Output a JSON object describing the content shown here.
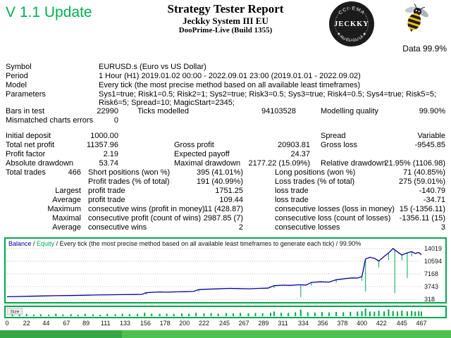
{
  "version_label": "V 1.1 Update",
  "header": {
    "title": "Strategy Tester Report",
    "subtitle": "Jeckky System III EU",
    "build": "DooPrime-Live (Build 1355)",
    "badge": {
      "arc_top": "· CCI-EMA ·",
      "center": "JECKKY",
      "arc_bottom": "★ AU EU GU UI ★"
    },
    "data_quality": "Data 99.9%"
  },
  "colors": {
    "accent_green": "#00B04F",
    "border_green": "#00A94C",
    "band_green_left": "#35A845",
    "band_green_right": "#4CC24F",
    "balance_blue": "#0000A0",
    "equity_green": "#00A651",
    "grid_gray": "#BFBFBF"
  },
  "report": {
    "rows": [
      {
        "cells": [
          [
            "c1",
            "Symbol"
          ],
          [
            "wide",
            "EURUSD.s (Euro vs US Dollar)"
          ]
        ]
      },
      {
        "cells": [
          [
            "c1",
            "Period"
          ],
          [
            "wide",
            "1 Hour (H1) 2019.01.02 00:00 - 2022.09.01 23:00 (2019.01.01 - 2022.09.02)"
          ]
        ]
      },
      {
        "cells": [
          [
            "c1",
            "Model"
          ],
          [
            "wide",
            "Every tick (the most precise method based on all available least timeframes)"
          ]
        ]
      },
      {
        "cls": "h24",
        "cells": [
          [
            "c1",
            "Parameters"
          ],
          [
            "wide",
            "Sys1=true; Risk1=0.5; Risk2=1; Sys2=true; Risk3=0.5; Sys3=true; Risk4=0.5; Sys4=true; Risk5=5; Risk6=5; Spread=10; MagicStart=2345;"
          ]
        ]
      },
      {
        "cells": [
          [
            "c1",
            "Bars in test"
          ],
          [
            "v1",
            "22990"
          ],
          [
            "c2m",
            "Ticks modelled"
          ],
          [
            "v2m",
            "94103528"
          ],
          [
            "c3",
            "Modelling quality"
          ],
          [
            "v3",
            "99.90%"
          ]
        ]
      },
      {
        "cls": "h22",
        "cells": [
          [
            "c1",
            "Mismatched charts errors"
          ],
          [
            "v1",
            "0"
          ]
        ]
      },
      {
        "cells": [
          [
            "c1",
            "Initial deposit"
          ],
          [
            "v1",
            "1000.00"
          ],
          [
            "c3",
            "Spread"
          ],
          [
            "v3",
            "Variable"
          ]
        ]
      },
      {
        "cells": [
          [
            "c1",
            "Total net profit"
          ],
          [
            "v1",
            "11357.96"
          ],
          [
            "c2",
            "Gross profit"
          ],
          [
            "v2",
            "20903.81"
          ],
          [
            "c3",
            "Gross loss"
          ],
          [
            "v3",
            "-9545.85"
          ]
        ]
      },
      {
        "cells": [
          [
            "c1",
            "Profit factor"
          ],
          [
            "v1",
            "2.19"
          ],
          [
            "c2",
            "Expected payoff"
          ],
          [
            "v2",
            "24.37"
          ]
        ]
      },
      {
        "cells": [
          [
            "c1",
            "Absolute drawdown"
          ],
          [
            "v1",
            "53.74"
          ],
          [
            "c2",
            "Maximal drawdown"
          ],
          [
            "v2",
            "2177.22 (15.09%)"
          ],
          [
            "c3",
            "Relative drawdown"
          ],
          [
            "v3",
            "21.95% (1106.98)"
          ]
        ]
      },
      {
        "cells": [
          [
            "c1",
            "Total trades"
          ],
          [
            "v1t",
            "466"
          ],
          [
            "c2t",
            "Short positions (won %)"
          ],
          [
            "v2t",
            "395 (41.01%)"
          ],
          [
            "c3t",
            "Long positions (won %)"
          ],
          [
            "v3",
            "71 (40.85%)"
          ]
        ]
      },
      {
        "cells": [
          [
            "c2t",
            "Profit trades (% of total)"
          ],
          [
            "v2t",
            "191 (40.99%)"
          ],
          [
            "c3t",
            "Loss trades (% of total)"
          ],
          [
            "v3",
            "275 (59.01%)"
          ]
        ]
      },
      {
        "cells": [
          [
            "v1t",
            "Largest"
          ],
          [
            "c2t",
            "profit trade"
          ],
          [
            "v2t",
            "1751.25"
          ],
          [
            "c3t",
            "loss trade"
          ],
          [
            "v3",
            "-140.79"
          ]
        ]
      },
      {
        "cells": [
          [
            "v1t",
            "Average"
          ],
          [
            "c2t",
            "profit trade"
          ],
          [
            "v2t",
            "109.44"
          ],
          [
            "c3t",
            "loss trade"
          ],
          [
            "v3",
            "-34.71"
          ]
        ]
      },
      {
        "cells": [
          [
            "v1t",
            "Maximum"
          ],
          [
            "c2t",
            "consecutive wins (profit in money)"
          ],
          [
            "v2t",
            "11 (428.87)"
          ],
          [
            "c3t",
            "consecutive losses (loss in money)"
          ],
          [
            "v3",
            "15 (-1356.11)"
          ]
        ]
      },
      {
        "cells": [
          [
            "v1t",
            "Maximal"
          ],
          [
            "c2t",
            "consecutive profit (count of wins)"
          ],
          [
            "v2t",
            "2987.85 (7)"
          ],
          [
            "c3t",
            "consecutive loss (count of losses)"
          ],
          [
            "v3",
            "-1356.11 (15)"
          ]
        ]
      },
      {
        "cells": [
          [
            "v1t",
            "Average"
          ],
          [
            "c2t",
            "consecutive wins"
          ],
          [
            "v2t",
            "2"
          ],
          [
            "c3t",
            "consecutive losses"
          ],
          [
            "v3",
            "3"
          ]
        ]
      }
    ]
  },
  "chart_data": {
    "type": "line",
    "legend": {
      "balance": "Balance",
      "equity": "Equity",
      "sep": " / ",
      "desc": "Every tick (the most precise method based on all available least timeframes to generate each tick)",
      "quality": "99.90%"
    },
    "size_label": "Size",
    "xmin": 0,
    "xmax": 467,
    "ymin": 318,
    "ymax": 14019,
    "ylabels": [
      14019,
      10594,
      7168,
      3743,
      318
    ],
    "xlabels": [
      0,
      22,
      44,
      67,
      89,
      111,
      133,
      156,
      178,
      200,
      222,
      245,
      267,
      289,
      311,
      334,
      356,
      378,
      400,
      422,
      445,
      467
    ],
    "balance_series": [
      [
        0,
        1000
      ],
      [
        12,
        1060
      ],
      [
        25,
        1130
      ],
      [
        40,
        1210
      ],
      [
        55,
        1280
      ],
      [
        70,
        1330
      ],
      [
        85,
        1400
      ],
      [
        100,
        1470
      ],
      [
        115,
        1530
      ],
      [
        130,
        1570
      ],
      [
        145,
        1620
      ],
      [
        152,
        1650
      ],
      [
        157,
        2080
      ],
      [
        165,
        2230
      ],
      [
        172,
        2300
      ],
      [
        180,
        2240
      ],
      [
        190,
        2310
      ],
      [
        200,
        2370
      ],
      [
        210,
        2430
      ],
      [
        216,
        2920
      ],
      [
        226,
        3040
      ],
      [
        238,
        3130
      ],
      [
        250,
        3270
      ],
      [
        261,
        3210
      ],
      [
        273,
        3160
      ],
      [
        284,
        3270
      ],
      [
        294,
        3330
      ],
      [
        301,
        3990
      ],
      [
        311,
        4130
      ],
      [
        319,
        4070
      ],
      [
        329,
        4230
      ],
      [
        337,
        4170
      ],
      [
        343,
        4870
      ],
      [
        353,
        5030
      ],
      [
        363,
        4960
      ],
      [
        371,
        5590
      ],
      [
        381,
        5890
      ],
      [
        389,
        6090
      ],
      [
        395,
        6050
      ],
      [
        400,
        6440
      ],
      [
        404,
        11210
      ],
      [
        409,
        11660
      ],
      [
        414,
        11420
      ],
      [
        419,
        10660
      ],
      [
        425,
        11910
      ],
      [
        430,
        12820
      ],
      [
        435,
        14019
      ],
      [
        440,
        13120
      ],
      [
        445,
        12260
      ],
      [
        451,
        12860
      ],
      [
        456,
        13210
      ],
      [
        460,
        12710
      ],
      [
        464,
        12960
      ],
      [
        467,
        12358
      ]
    ],
    "equity_spikes": [
      [
        157,
        1600
      ],
      [
        216,
        2350
      ],
      [
        301,
        3300
      ],
      [
        331,
        900
      ],
      [
        343,
        4000
      ],
      [
        371,
        4800
      ],
      [
        400,
        5300
      ],
      [
        404,
        2400
      ],
      [
        419,
        8900
      ],
      [
        430,
        10900
      ],
      [
        437,
        2000
      ],
      [
        445,
        10800
      ],
      [
        451,
        6000
      ],
      [
        456,
        11900
      ]
    ],
    "size_bars": [
      [
        6,
        0.25
      ],
      [
        14,
        0.2
      ],
      [
        22,
        0.28
      ],
      [
        30,
        0.2
      ],
      [
        38,
        0.25
      ],
      [
        47,
        0.2
      ],
      [
        55,
        0.3
      ],
      [
        63,
        0.22
      ],
      [
        72,
        0.26
      ],
      [
        80,
        0.2
      ],
      [
        88,
        0.3
      ],
      [
        97,
        0.24
      ],
      [
        105,
        0.2
      ],
      [
        113,
        0.3
      ],
      [
        122,
        0.25
      ],
      [
        130,
        0.3
      ],
      [
        138,
        0.26
      ],
      [
        147,
        0.3
      ],
      [
        155,
        0.45
      ],
      [
        163,
        0.32
      ],
      [
        172,
        0.3
      ],
      [
        180,
        0.34
      ],
      [
        188,
        0.3
      ],
      [
        197,
        0.36
      ],
      [
        205,
        0.32
      ],
      [
        213,
        0.45
      ],
      [
        222,
        0.36
      ],
      [
        230,
        0.4
      ],
      [
        238,
        0.34
      ],
      [
        247,
        0.4
      ],
      [
        255,
        0.36
      ],
      [
        263,
        0.42
      ],
      [
        272,
        0.36
      ],
      [
        280,
        0.42
      ],
      [
        288,
        0.38
      ],
      [
        297,
        0.44
      ],
      [
        301,
        0.6
      ],
      [
        309,
        0.45
      ],
      [
        317,
        0.42
      ],
      [
        325,
        0.5
      ],
      [
        331,
        0.85
      ],
      [
        339,
        0.5
      ],
      [
        347,
        0.46
      ],
      [
        355,
        0.52
      ],
      [
        363,
        0.48
      ],
      [
        371,
        0.55
      ],
      [
        379,
        0.5
      ],
      [
        387,
        0.56
      ],
      [
        395,
        0.6
      ],
      [
        400,
        0.65
      ],
      [
        404,
        1.0
      ],
      [
        409,
        0.6
      ],
      [
        414,
        0.58
      ],
      [
        419,
        0.7
      ],
      [
        425,
        0.62
      ],
      [
        430,
        0.88
      ],
      [
        435,
        0.66
      ],
      [
        440,
        0.6
      ],
      [
        445,
        0.72
      ],
      [
        451,
        0.62
      ],
      [
        456,
        0.66
      ],
      [
        460,
        0.6
      ],
      [
        464,
        0.64
      ],
      [
        467,
        0.6
      ]
    ]
  }
}
